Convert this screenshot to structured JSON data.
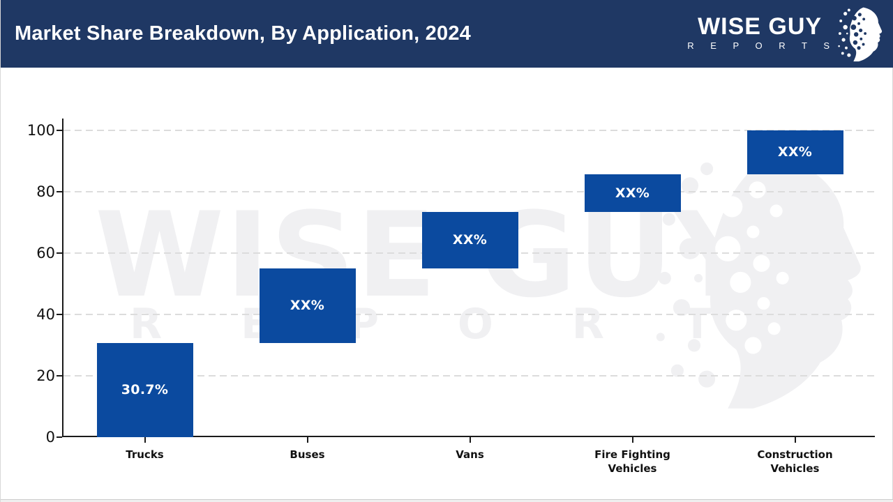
{
  "header": {
    "title": "Market Share Breakdown, By Application, 2024",
    "bg_color": "#1F3864",
    "logo": {
      "line1": "WISE GUY",
      "line2": "R E P O R T S"
    }
  },
  "watermark": {
    "line1": "WISE GUY",
    "line2": "R E P O R T S"
  },
  "chart_data": {
    "type": "bar",
    "subtype": "waterfall",
    "title": "Market Share Breakdown, By Application, 2024",
    "xlabel": "",
    "ylabel": "",
    "ylim": [
      0,
      100
    ],
    "yticks": [
      0,
      20,
      40,
      60,
      80,
      100
    ],
    "grid": "horizontal-dashed",
    "grid_color": "#DCDCDC",
    "bar_color": "#0B4A9F",
    "bar_label_color": "#FFFFFF",
    "categories": [
      "Trucks",
      "Buses",
      "Vans",
      "Fire Fighting Vehicles",
      "Construction Vehicles"
    ],
    "bars": [
      {
        "category_lines": [
          "Trucks"
        ],
        "start": 0,
        "end": 30.7,
        "segment_value_est": 30.7,
        "label": "30.7%"
      },
      {
        "category_lines": [
          "Buses"
        ],
        "start": 30.7,
        "end": 55.0,
        "segment_value_est": 24.3,
        "label": "XX%"
      },
      {
        "category_lines": [
          "Vans"
        ],
        "start": 55.0,
        "end": 73.5,
        "segment_value_est": 18.5,
        "label": "XX%"
      },
      {
        "category_lines": [
          "Fire Fighting",
          "Vehicles"
        ],
        "start": 73.5,
        "end": 85.7,
        "segment_value_est": 12.2,
        "label": "XX%"
      },
      {
        "category_lines": [
          "Construction",
          "Vehicles"
        ],
        "start": 85.7,
        "end": 100.0,
        "segment_value_est": 14.3,
        "label": "XX%"
      }
    ]
  }
}
